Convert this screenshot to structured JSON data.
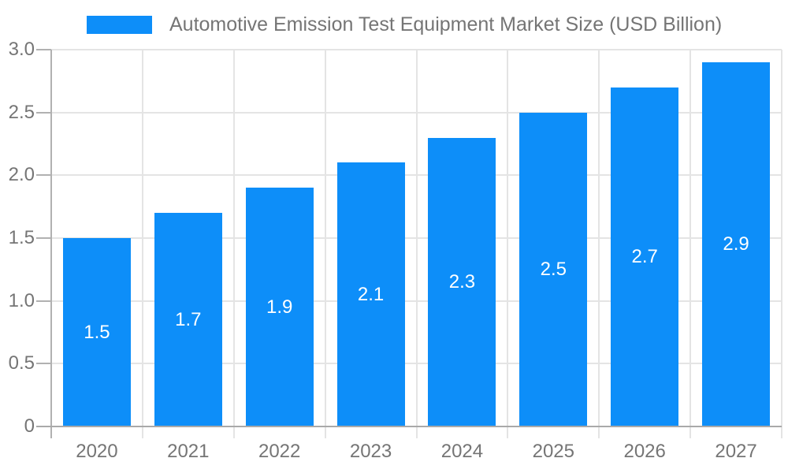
{
  "chart_data": {
    "type": "bar",
    "title": "Automotive Emission Test Equipment Market Size (USD Billion)",
    "legend": {
      "position": "top",
      "label": "Automotive Emission Test Equipment Market Size (USD Billion)"
    },
    "categories": [
      "2020",
      "2021",
      "2022",
      "2023",
      "2024",
      "2025",
      "2026",
      "2027"
    ],
    "series": [
      {
        "name": "Automotive Emission Test Equipment Market Size (USD Billion)",
        "values": [
          1.5,
          1.7,
          1.9,
          2.1,
          2.3,
          2.5,
          2.7,
          2.9
        ]
      }
    ],
    "bar_labels": [
      "1.5",
      "1.7",
      "1.9",
      "2.1",
      "2.3",
      "2.5",
      "2.7",
      "2.9"
    ],
    "xlabel": "",
    "ylabel": "",
    "ylim": [
      0,
      3.0
    ],
    "ytick_step": 0.5,
    "ytick_labels": [
      "0",
      "0.5",
      "1.0",
      "1.5",
      "2.0",
      "2.5",
      "3.0"
    ],
    "grid": true,
    "colors": {
      "bar": "#0d8ef9",
      "grid": "#e4e4e4",
      "axis": "#b1b1b1",
      "text": "#757575",
      "bar_label": "#ffffff",
      "background": "#ffffff"
    }
  }
}
